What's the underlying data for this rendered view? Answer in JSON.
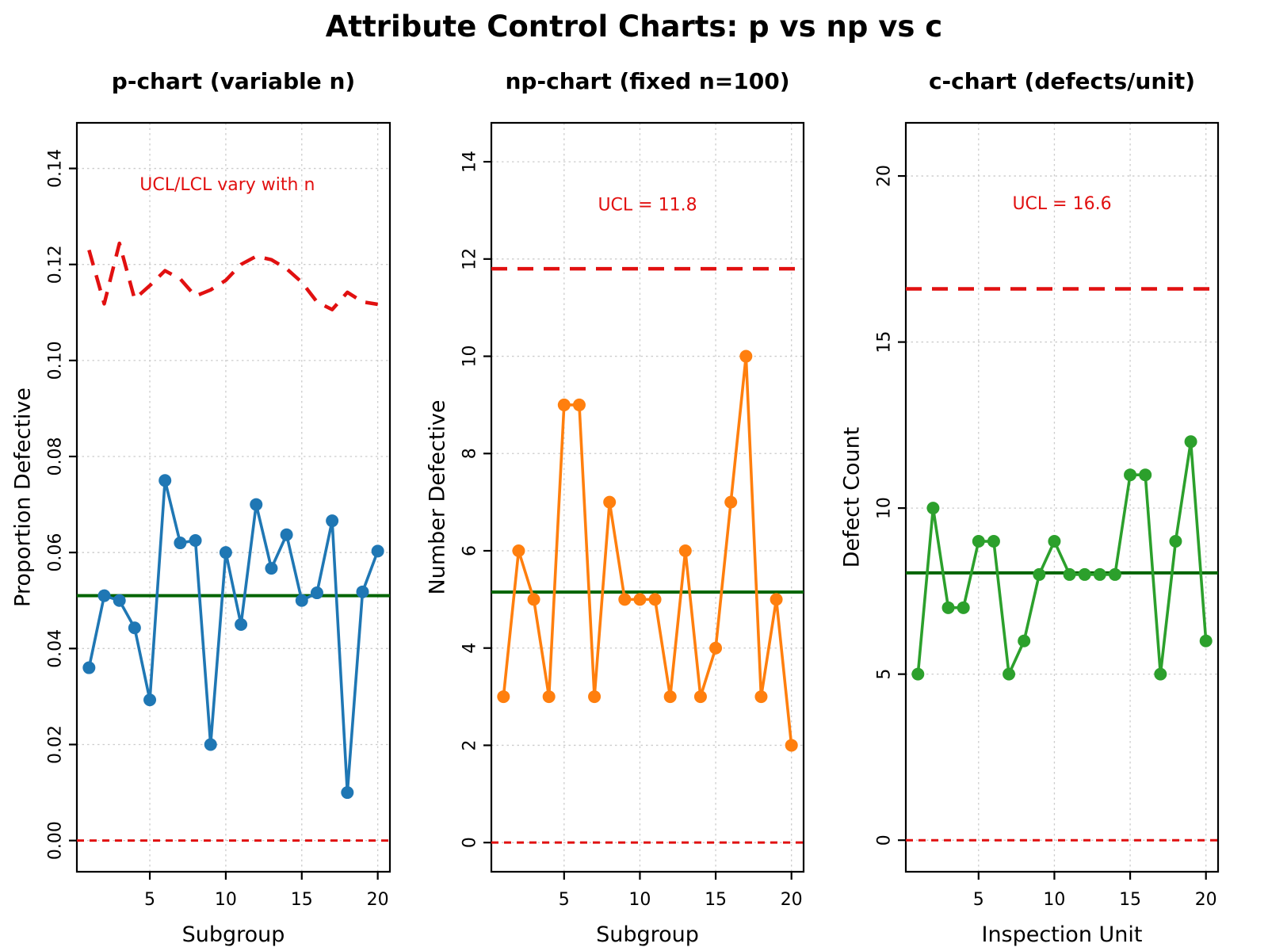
{
  "figure": {
    "title": "Attribute Control Charts: p vs np vs c",
    "background": "#ffffff"
  },
  "colors": {
    "grid": "#cccccc",
    "spine": "#000000",
    "text": "#000000",
    "center_line": "#006400",
    "control_limit": "#e11010"
  },
  "chart_data": [
    {
      "type": "line",
      "title": "p-chart (variable n)",
      "xlabel": "Subgroup",
      "ylabel": "Proportion Defective",
      "color": "#1f77b4",
      "x": [
        1,
        2,
        3,
        4,
        5,
        6,
        7,
        8,
        9,
        10,
        11,
        12,
        13,
        14,
        15,
        16,
        17,
        18,
        19,
        20
      ],
      "values": [
        0.036,
        0.051,
        0.05,
        0.0443,
        0.0293,
        0.075,
        0.062,
        0.0625,
        0.02,
        0.06,
        0.045,
        0.07,
        0.0567,
        0.0637,
        0.05,
        0.0516,
        0.0666,
        0.01,
        0.0518,
        0.0603
      ],
      "center_line": 0.051,
      "lcl": 0.0,
      "ucl_varying": [
        0.123,
        0.1118,
        0.1244,
        0.1128,
        0.1156,
        0.1187,
        0.117,
        0.1134,
        0.1147,
        0.1167,
        0.12,
        0.1217,
        0.121,
        0.1191,
        0.1163,
        0.1122,
        0.1106,
        0.1142,
        0.1122,
        0.1117
      ],
      "annotation": {
        "text": "UCL/LCL vary with n",
        "x": 10.1,
        "y": 0.1355
      },
      "xticks": [
        5,
        10,
        15,
        20
      ],
      "xtick_labels": [
        "5",
        "10",
        "15",
        "20"
      ],
      "yticks": [
        0.0,
        0.02,
        0.04,
        0.06,
        0.08,
        0.1,
        0.12,
        0.14
      ],
      "ytick_labels": [
        "0.00",
        "0.02",
        "0.04",
        "0.06",
        "0.08",
        "0.10",
        "0.12",
        "0.14"
      ],
      "xlim": [
        0.2,
        20.8
      ],
      "ylim": [
        -0.0065,
        0.1495
      ],
      "grid": true,
      "legend": "none"
    },
    {
      "type": "line",
      "title": "np-chart (fixed n=100)",
      "xlabel": "Subgroup",
      "ylabel": "Number Defective",
      "color": "#ff7f0e",
      "x": [
        1,
        2,
        3,
        4,
        5,
        6,
        7,
        8,
        9,
        10,
        11,
        12,
        13,
        14,
        15,
        16,
        17,
        18,
        19,
        20
      ],
      "values": [
        3,
        6,
        5,
        3,
        9,
        9,
        3,
        7,
        5,
        5,
        5,
        3,
        6,
        3,
        4,
        7,
        10,
        3,
        5,
        2
      ],
      "center_line": 5.15,
      "ucl": 11.8,
      "lcl": 0,
      "annotation": {
        "text": "UCL = 11.8",
        "x": 10.5,
        "y": 13.0
      },
      "xticks": [
        5,
        10,
        15,
        20
      ],
      "xtick_labels": [
        "5",
        "10",
        "15",
        "20"
      ],
      "yticks": [
        0,
        2,
        4,
        6,
        8,
        10,
        12,
        14
      ],
      "ytick_labels": [
        "0",
        "2",
        "4",
        "6",
        "8",
        "10",
        "12",
        "14"
      ],
      "xlim": [
        0.2,
        20.8
      ],
      "ylim": [
        -0.6,
        14.8
      ],
      "grid": true,
      "legend": "none"
    },
    {
      "type": "line",
      "title": "c-chart (defects/unit)",
      "xlabel": "Inspection Unit",
      "ylabel": "Defect Count",
      "color": "#2ca02c",
      "x": [
        1,
        2,
        3,
        4,
        5,
        6,
        7,
        8,
        9,
        10,
        11,
        12,
        13,
        14,
        15,
        16,
        17,
        18,
        19,
        20
      ],
      "values": [
        5,
        10,
        7,
        7,
        9,
        9,
        5,
        6,
        8,
        9,
        8,
        8,
        8,
        8,
        11,
        11,
        5,
        9,
        12,
        6
      ],
      "center_line": 8.05,
      "ucl": 16.6,
      "lcl": 0,
      "annotation": {
        "text": "UCL = 16.6",
        "x": 10.5,
        "y": 19.0
      },
      "xticks": [
        5,
        10,
        15,
        20
      ],
      "xtick_labels": [
        "5",
        "10",
        "15",
        "20"
      ],
      "yticks": [
        0,
        5,
        10,
        15,
        20
      ],
      "ytick_labels": [
        "0",
        "5",
        "10",
        "15",
        "20"
      ],
      "xlim": [
        0.2,
        20.8
      ],
      "ylim": [
        -0.95,
        21.6
      ],
      "grid": true,
      "legend": "none"
    }
  ]
}
